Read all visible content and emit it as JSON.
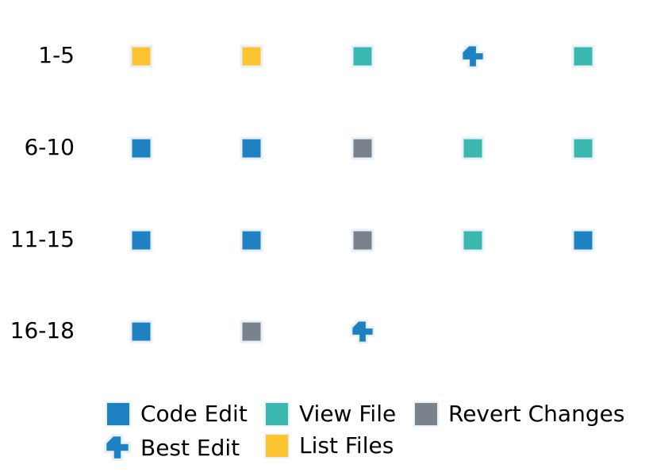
{
  "figure": {
    "background": "#ffffff"
  },
  "chart_data": {
    "type": "scatter",
    "title": "",
    "xlabel": "",
    "ylabel": "",
    "grid": "off",
    "legend_position": "bottom",
    "y_tick_labels": [
      "1-5",
      "6-10",
      "11-15",
      "16-18"
    ],
    "x_positions": [
      1,
      2,
      3,
      4,
      5
    ],
    "cells": [
      [
        "List Files",
        "List Files",
        "View File",
        "Best Edit",
        "View File"
      ],
      [
        "Code Edit",
        "Code Edit",
        "Revert Changes",
        "View File",
        "View File"
      ],
      [
        "Code Edit",
        "Code Edit",
        "Revert Changes",
        "View File",
        "Code Edit"
      ],
      [
        "Code Edit",
        "Revert Changes",
        "Best Edit",
        null,
        null
      ]
    ],
    "legend_rows": [
      [
        "Code Edit",
        "View File",
        "Revert Changes"
      ],
      [
        "Best Edit",
        "List Files"
      ]
    ],
    "series_styles": {
      "Code Edit": {
        "marker": "square",
        "color": "#1e82c2"
      },
      "View File": {
        "marker": "square",
        "color": "#3ab7ae"
      },
      "Revert Changes": {
        "marker": "square",
        "color": "#7a828c"
      },
      "Best Edit": {
        "marker": "plus",
        "color": "#1e82c2"
      },
      "List Files": {
        "marker": "square",
        "color": "#fdc431"
      }
    },
    "marker_edge_color": "#e8f1f8",
    "text_color": "#000000"
  }
}
